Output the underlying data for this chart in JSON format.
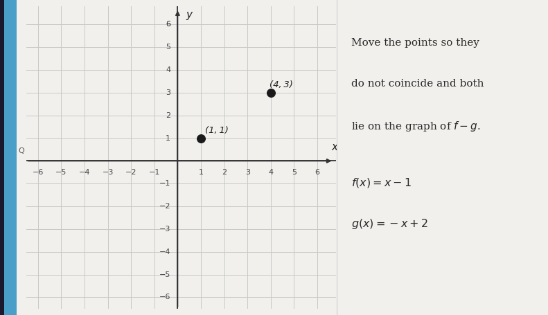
{
  "xlim": [
    -6.5,
    6.8
  ],
  "ylim": [
    -6.5,
    6.8
  ],
  "xticks": [
    -6,
    -5,
    -4,
    -3,
    -2,
    -1,
    1,
    2,
    3,
    4,
    5,
    6
  ],
  "yticks": [
    -6,
    -5,
    -4,
    -3,
    -2,
    -1,
    1,
    2,
    3,
    4,
    5,
    6
  ],
  "point1": [
    1,
    1
  ],
  "point2": [
    4,
    3
  ],
  "label1": "(1, 1)",
  "label2": "(4, 3)",
  "point_color": "#1a1a1a",
  "point_size": 70,
  "grid_color": "#c8c8c8",
  "axis_color": "#333333",
  "graph_bg": "#f2f0ed",
  "right_panel_bg": "#f2f0ed",
  "outer_bg": "#f2f0ed",
  "left_strip_bg": "#4a9ac4",
  "dark_strip_bg": "#2c2c2c",
  "xlabel": "x",
  "ylabel": "y",
  "instruction_line1": "Move the points so they",
  "instruction_line2": "do not coincide and both",
  "instruction_line3": "lie on the graph of $f - g$.",
  "fx_label": "$f(x) = x - 1$",
  "gx_label": "$g(x) = -x + 2$",
  "tick_fontsize": 8,
  "label_fontsize": 9.5,
  "instruction_fontsize": 11,
  "eq_fontsize": 11.5
}
